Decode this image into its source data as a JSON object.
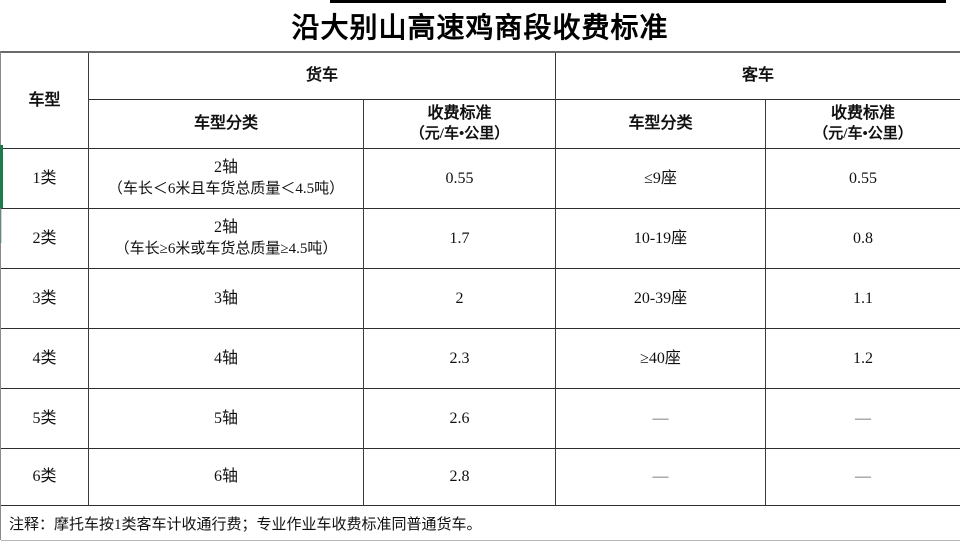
{
  "title": "沿大别山高速鸡商段收费标准",
  "table": {
    "vehicle_type_header": "车型",
    "truck_group_header": "货车",
    "bus_group_header": "客车",
    "truck_class_header": "车型分类",
    "truck_rate_header_line1": "收费标准",
    "truck_rate_header_line2": "（元/车•公里）",
    "bus_class_header": "车型分类",
    "bus_rate_header_line1": "收费标准",
    "bus_rate_header_line2": "（元/车•公里）",
    "rows": [
      {
        "cls": "1类",
        "truck_class": "2轴",
        "truck_class_note": "（车长＜6米且车货总质量＜4.5吨）",
        "truck_rate": "0.55",
        "bus_class": "≤9座",
        "bus_rate": "0.55"
      },
      {
        "cls": "2类",
        "truck_class": "2轴",
        "truck_class_note": "（车长≥6米或车货总质量≥4.5吨）",
        "truck_rate": "1.7",
        "bus_class": "10-19座",
        "bus_rate": "0.8"
      },
      {
        "cls": "3类",
        "truck_class": "3轴",
        "truck_class_note": "",
        "truck_rate": "2",
        "bus_class": "20-39座",
        "bus_rate": "1.1"
      },
      {
        "cls": "4类",
        "truck_class": "4轴",
        "truck_class_note": "",
        "truck_rate": "2.3",
        "bus_class": "≥40座",
        "bus_rate": "1.2"
      },
      {
        "cls": "5类",
        "truck_class": "5轴",
        "truck_class_note": "",
        "truck_rate": "2.6",
        "bus_class": "—",
        "bus_rate": "—"
      },
      {
        "cls": "6类",
        "truck_class": "6轴",
        "truck_class_note": "",
        "truck_rate": "2.8",
        "bus_class": "—",
        "bus_rate": "—"
      }
    ],
    "note": "注释：摩托车按1类客车计收通行费；专业作业车收费标准同普通货车。"
  },
  "colors": {
    "accent_green": "#1d7a4b",
    "border_dark": "#2e2e2e",
    "title_bar_black": "#000000"
  }
}
